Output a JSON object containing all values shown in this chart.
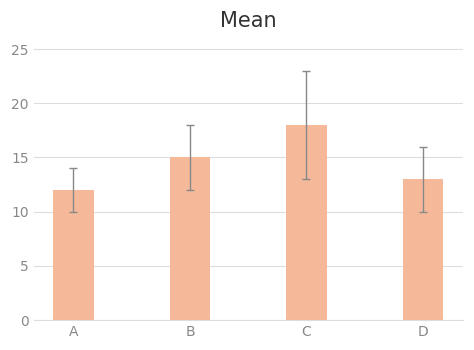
{
  "categories": [
    "A",
    "B",
    "C",
    "D"
  ],
  "values": [
    12,
    15,
    18,
    13
  ],
  "yerr_lower": [
    2,
    3,
    5,
    3
  ],
  "yerr_upper": [
    2,
    3,
    5,
    3
  ],
  "bar_color": "#F5B99A",
  "error_color": "#888888",
  "title": "Mean",
  "title_fontsize": 15,
  "ylim": [
    0,
    26
  ],
  "yticks": [
    0,
    5,
    10,
    15,
    20,
    25
  ],
  "background_color": "#FFFFFF",
  "plot_bg_color": "#FFFFFF",
  "grid_color": "#DDDDDD",
  "bar_width": 0.35,
  "capsize": 3,
  "error_linewidth": 1.0,
  "tick_fontsize": 10,
  "tick_color": "#888888"
}
